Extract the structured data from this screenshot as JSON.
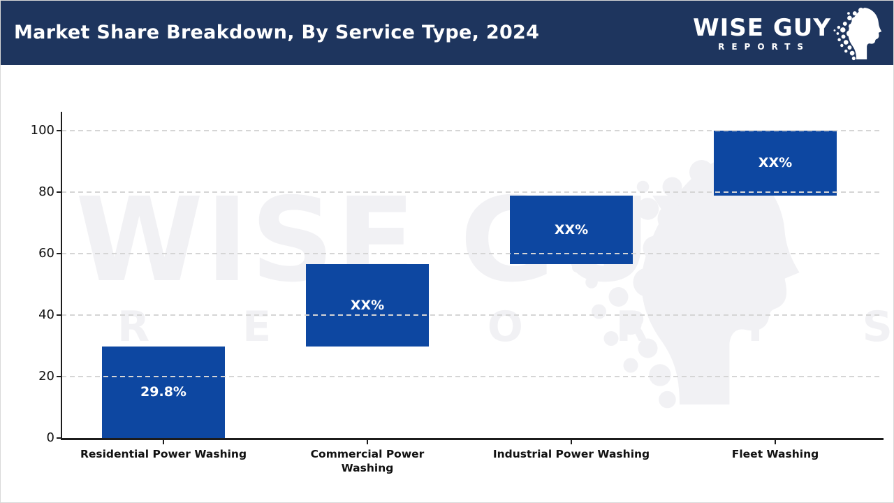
{
  "header": {
    "title": "Market Share Breakdown, By Service Type, 2024",
    "logo": {
      "line1": "WISE GUY",
      "line2": "REPORTS"
    }
  },
  "watermark": {
    "line1": "WISE GUY",
    "line2": "R E P O R T S"
  },
  "chart_data": {
    "type": "bar",
    "subtype": "waterfall",
    "title": "Market Share Breakdown, By Service Type, 2024",
    "categories": [
      "Residential Power Washing",
      "Commercial Power Washing",
      "Industrial Power Washing",
      "Fleet Washing"
    ],
    "bars": [
      {
        "category": "Residential Power Washing",
        "start": 0,
        "end": 29.8,
        "label": "29.8%"
      },
      {
        "category": "Commercial Power Washing",
        "start": 29.8,
        "end": 56.6,
        "label": "XX%"
      },
      {
        "category": "Industrial Power Washing",
        "start": 56.6,
        "end": 78.9,
        "label": "XX%"
      },
      {
        "category": "Fleet Washing",
        "start": 78.9,
        "end": 100,
        "label": "XX%"
      }
    ],
    "xlabel": "",
    "ylabel": "",
    "ylim": [
      0,
      100
    ],
    "yticks": [
      0,
      20,
      40,
      60,
      80,
      100
    ],
    "grid": "horizontal-dashed-over-bars",
    "legend": "none",
    "bar_color": "#0d47a1",
    "bar_label_color": "#ffffff"
  },
  "colors": {
    "header_bg": "#1e355e",
    "title_text": "#ffffff",
    "axis": "#1c1c1c",
    "gridline": "#d5d5d5",
    "watermark": "#f1f1f4",
    "page_border": "#d9d9d9"
  }
}
